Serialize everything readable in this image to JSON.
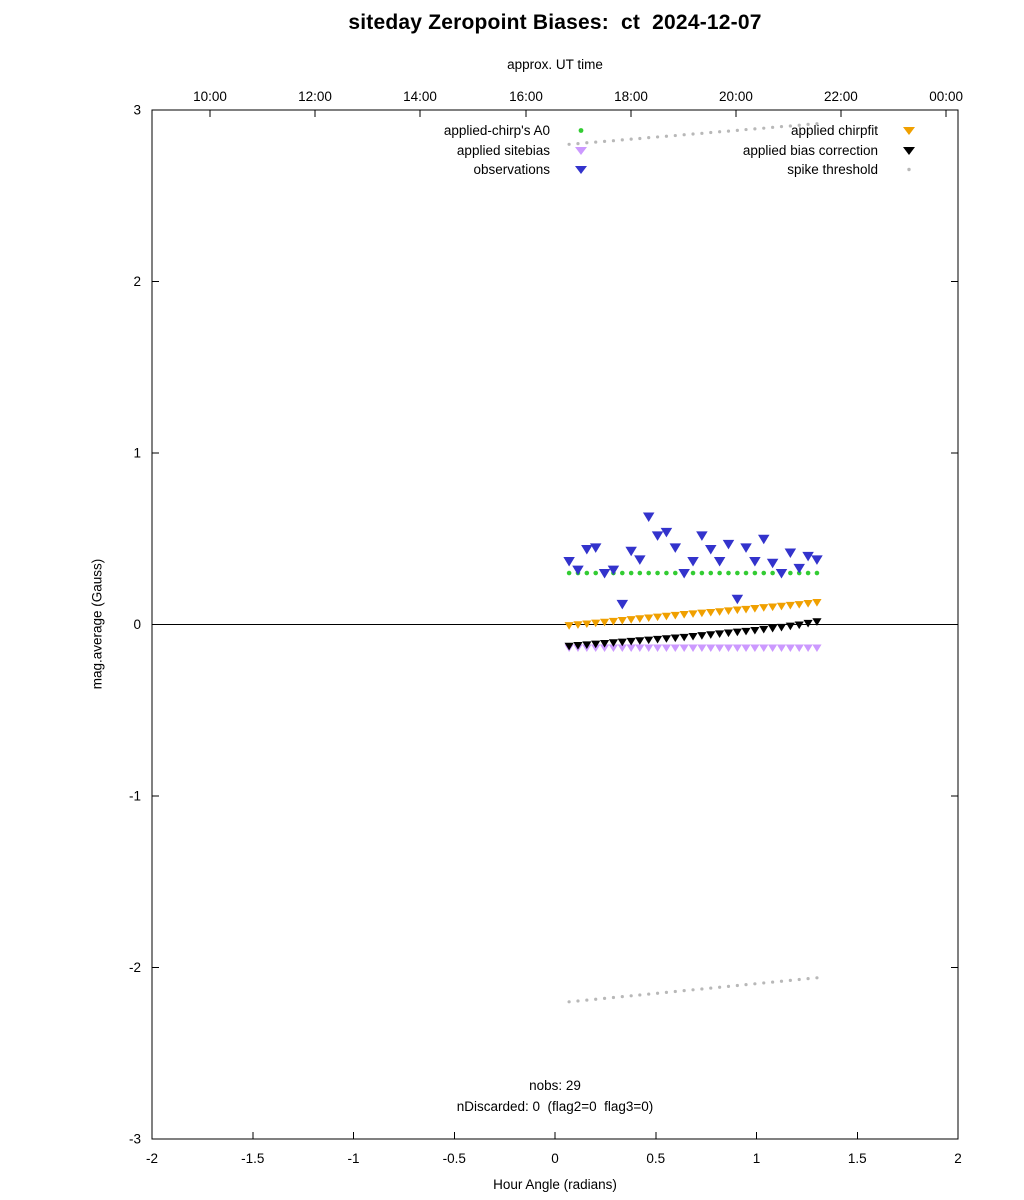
{
  "chart_data": {
    "type": "scatter",
    "title": "siteday Zeropoint Biases:  ct  2024-12-07",
    "top_axis": {
      "label": "approx. UT time",
      "ticks": [
        {
          "x": -1.712,
          "label": "10:00"
        },
        {
          "x": -1.191,
          "label": "12:00"
        },
        {
          "x": -0.67,
          "label": "14:00"
        },
        {
          "x": -0.144,
          "label": "16:00"
        },
        {
          "x": 0.377,
          "label": "18:00"
        },
        {
          "x": 0.898,
          "label": "20:00"
        },
        {
          "x": 1.419,
          "label": "22:00"
        },
        {
          "x": 1.941,
          "label": "00:00"
        }
      ]
    },
    "x_axis": {
      "label": "Hour Angle (radians)",
      "lim": [
        -2,
        2
      ],
      "ticks": [
        {
          "x": -2,
          "label": "-2"
        },
        {
          "x": -1.5,
          "label": "-1.5"
        },
        {
          "x": -1,
          "label": "-1"
        },
        {
          "x": -0.5,
          "label": "-0.5"
        },
        {
          "x": 0,
          "label": "0"
        },
        {
          "x": 0.5,
          "label": "0.5"
        },
        {
          "x": 1,
          "label": "1"
        },
        {
          "x": 1.5,
          "label": "1.5"
        },
        {
          "x": 2,
          "label": "2"
        }
      ]
    },
    "y_axis": {
      "label": "mag.average (Gauss)",
      "lim": [
        -3,
        3
      ],
      "ticks": [
        {
          "y": 3,
          "label": "3"
        },
        {
          "y": 2,
          "label": "2"
        },
        {
          "y": 1,
          "label": "1"
        },
        {
          "y": 0,
          "label": "0"
        },
        {
          "y": -1,
          "label": "-1"
        },
        {
          "y": -2,
          "label": "-2"
        },
        {
          "y": -3,
          "label": "-3"
        }
      ]
    },
    "zero_line": true,
    "grid": false,
    "annotations": [
      "nobs: 29",
      "nDiscarded: 0  (flag2=0  flag3=0)"
    ],
    "legend": {
      "position": "top-center-inside",
      "col1": [
        {
          "label": "applied-chirp's A0",
          "series": "a0"
        },
        {
          "label": "applied sitebias",
          "series": "sitebias"
        },
        {
          "label": "observations",
          "series": "observations"
        }
      ],
      "col2": [
        {
          "label": "applied chirpfit",
          "series": "chirpfit"
        },
        {
          "label": "applied bias correction",
          "series": "biascorr"
        },
        {
          "label": "spike threshold",
          "series": "spike_upper"
        }
      ]
    },
    "x_common": [
      0.07,
      0.114,
      0.158,
      0.202,
      0.246,
      0.29,
      0.334,
      0.378,
      0.421,
      0.465,
      0.509,
      0.553,
      0.597,
      0.641,
      0.685,
      0.729,
      0.773,
      0.817,
      0.861,
      0.905,
      0.948,
      0.992,
      1.036,
      1.08,
      1.124,
      1.168,
      1.212,
      1.256,
      1.3
    ],
    "series": [
      {
        "name": "spike_upper",
        "marker": "dot-small",
        "color": "#b8b8b8",
        "size": 1,
        "y": [
          2.8,
          2.804,
          2.809,
          2.813,
          2.817,
          2.821,
          2.826,
          2.83,
          2.834,
          2.839,
          2.843,
          2.847,
          2.851,
          2.856,
          2.86,
          2.864,
          2.869,
          2.873,
          2.877,
          2.881,
          2.886,
          2.89,
          2.894,
          2.899,
          2.903,
          2.907,
          2.911,
          2.916,
          2.92
        ]
      },
      {
        "name": "spike_lower",
        "marker": "dot-small",
        "color": "#b8b8b8",
        "size": 1,
        "y": [
          -2.2,
          -2.195,
          -2.19,
          -2.185,
          -2.18,
          -2.175,
          -2.17,
          -2.165,
          -2.16,
          -2.155,
          -2.15,
          -2.145,
          -2.14,
          -2.135,
          -2.13,
          -2.125,
          -2.12,
          -2.115,
          -2.11,
          -2.105,
          -2.1,
          -2.095,
          -2.09,
          -2.085,
          -2.08,
          -2.075,
          -2.07,
          -2.065,
          -2.06
        ]
      },
      {
        "name": "a0",
        "marker": "dot",
        "color": "#33cc33",
        "size": 1,
        "y": [
          0.3,
          0.3,
          0.3,
          0.3,
          0.3,
          0.3,
          0.3,
          0.3,
          0.3,
          0.3,
          0.3,
          0.3,
          0.3,
          0.3,
          0.3,
          0.3,
          0.3,
          0.3,
          0.3,
          0.3,
          0.3,
          0.3,
          0.3,
          0.3,
          0.3,
          0.3,
          0.3,
          0.3,
          0.3
        ]
      },
      {
        "name": "sitebias",
        "marker": "tri",
        "color": "#cc99ff",
        "size": 1,
        "y": [
          -0.135,
          -0.135,
          -0.135,
          -0.135,
          -0.135,
          -0.135,
          -0.135,
          -0.135,
          -0.135,
          -0.135,
          -0.135,
          -0.135,
          -0.135,
          -0.135,
          -0.135,
          -0.135,
          -0.135,
          -0.135,
          -0.135,
          -0.135,
          -0.135,
          -0.135,
          -0.135,
          -0.135,
          -0.135,
          -0.135,
          -0.135,
          -0.135,
          -0.135
        ]
      },
      {
        "name": "biascorr",
        "marker": "tri",
        "color": "#000000",
        "size": 1,
        "y": [
          -0.125,
          -0.121,
          -0.117,
          -0.113,
          -0.109,
          -0.105,
          -0.101,
          -0.097,
          -0.093,
          -0.089,
          -0.085,
          -0.081,
          -0.077,
          -0.073,
          -0.068,
          -0.063,
          -0.058,
          -0.053,
          -0.048,
          -0.043,
          -0.038,
          -0.033,
          -0.027,
          -0.021,
          -0.015,
          -0.008,
          -0.001,
          0.008,
          0.018
        ]
      },
      {
        "name": "chirpfit",
        "marker": "tri",
        "color": "#f0a000",
        "size": 1,
        "y": [
          -0.005,
          0.0,
          0.005,
          0.01,
          0.015,
          0.02,
          0.025,
          0.03,
          0.035,
          0.04,
          0.045,
          0.05,
          0.055,
          0.06,
          0.064,
          0.068,
          0.072,
          0.076,
          0.081,
          0.086,
          0.09,
          0.095,
          0.1,
          0.104,
          0.108,
          0.113,
          0.118,
          0.124,
          0.13
        ]
      },
      {
        "name": "observations",
        "marker": "tri",
        "color": "#3333cc",
        "size": 1.25,
        "y": [
          0.37,
          0.32,
          0.44,
          0.45,
          0.3,
          0.32,
          0.12,
          0.43,
          0.38,
          0.63,
          0.52,
          0.54,
          0.45,
          0.3,
          0.37,
          0.52,
          0.44,
          0.37,
          0.47,
          0.15,
          0.45,
          0.37,
          0.5,
          0.36,
          0.3,
          0.42,
          0.33,
          0.4,
          0.38
        ]
      }
    ]
  }
}
